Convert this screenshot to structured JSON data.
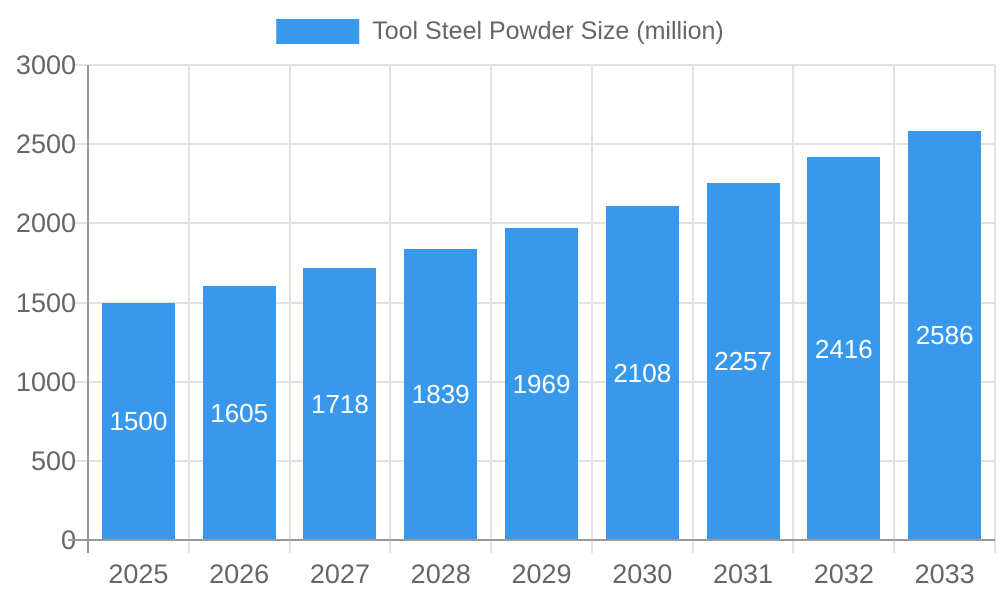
{
  "legend": {
    "label": "Tool Steel Powder Size (million)",
    "swatch_color": "#3899EC"
  },
  "chart_data": {
    "type": "bar",
    "title": "Tool Steel Powder Size (million)",
    "categories": [
      "2025",
      "2026",
      "2027",
      "2028",
      "2029",
      "2030",
      "2031",
      "2032",
      "2033"
    ],
    "series": [
      {
        "name": "Tool Steel Powder Size (million)",
        "values": [
          1500,
          1605,
          1718,
          1839,
          1969,
          2108,
          2257,
          2416,
          2586
        ]
      }
    ],
    "values": [
      1500,
      1605,
      1718,
      1839,
      1969,
      2108,
      2257,
      2416,
      2586
    ],
    "value_labels_shown": true,
    "value_label_position": "inside-center",
    "xlabel": "",
    "ylabel": "",
    "ylim": [
      0,
      3000
    ],
    "yticks": [
      0,
      500,
      1000,
      1500,
      2000,
      2500,
      3000
    ],
    "grid": true,
    "legend_position": "top-center",
    "colors": {
      "bar": "#3899EC",
      "grid_line": "#E2E2E2",
      "axis_line": "#999999",
      "tick_label_text": "#666666",
      "legend_text": "#666666",
      "bar_label_text": "#ffffff",
      "background": "#ffffff"
    }
  }
}
